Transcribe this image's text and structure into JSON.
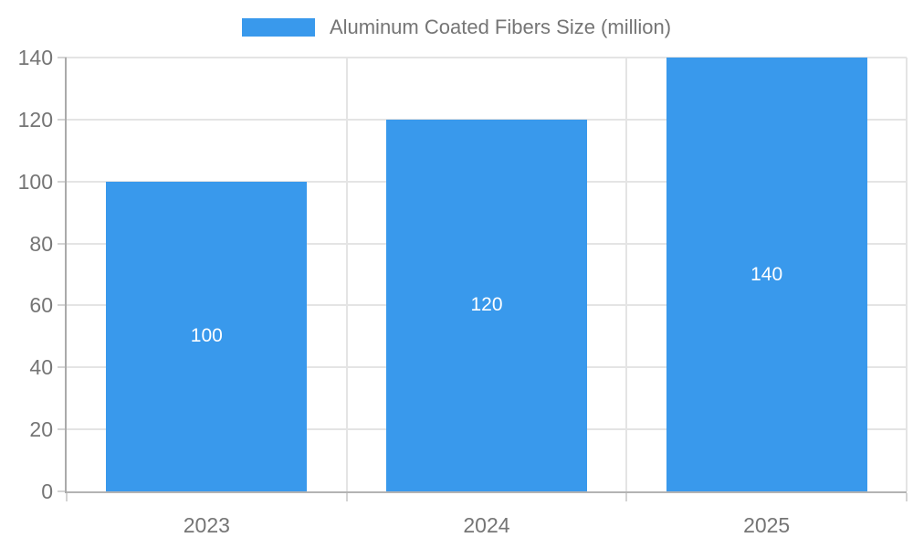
{
  "legend": {
    "label": "Aluminum Coated Fibers Size (million)"
  },
  "colors": {
    "bar": "#3999ec",
    "legend_text": "#757575",
    "tick_text": "#757575",
    "grid": "#e4e4e4",
    "tick_mark": "#d4d4d4",
    "axis_y": "#aaaaaa",
    "axis_x": "#b3b3b3",
    "data_label": "#ffffff",
    "background": "#ffffff"
  },
  "chart_data": {
    "type": "bar",
    "title": "",
    "categories": [
      "2023",
      "2024",
      "2025"
    ],
    "series": [
      {
        "name": "Aluminum Coated Fibers Size (million)",
        "values": [
          100,
          120,
          140
        ]
      }
    ],
    "data_labels": [
      "100",
      "120",
      "140"
    ],
    "xlabel": "",
    "ylabel": "",
    "ylim": [
      0,
      140
    ],
    "yticks": [
      0,
      20,
      40,
      60,
      80,
      100,
      120,
      140
    ],
    "grid": true,
    "legend_position": "top"
  }
}
